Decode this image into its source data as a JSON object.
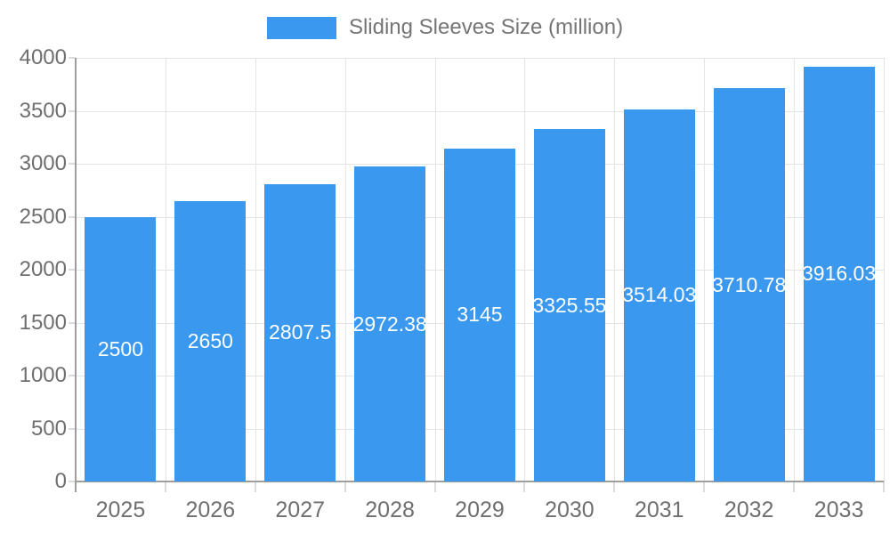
{
  "legend": {
    "label": "Sliding Sleeves Size (million)"
  },
  "chart_data": {
    "type": "bar",
    "title": "Sliding Sleeves Size (million)",
    "categories": [
      "2025",
      "2026",
      "2027",
      "2028",
      "2029",
      "2030",
      "2031",
      "2032",
      "2033"
    ],
    "series": [
      {
        "name": "Sliding Sleeves Size (million)",
        "values": [
          2500,
          2650,
          2807.5,
          2972.38,
          3145,
          3325.55,
          3514.03,
          3710.78,
          3916.03
        ]
      }
    ],
    "bar_labels": [
      "2500",
      "2650",
      "2807.5",
      "2972.38",
      "3145",
      "3325.55",
      "3514.03",
      "3710.78",
      "3916.03"
    ],
    "xlabel": "",
    "ylabel": "",
    "ylim": [
      0,
      4000
    ],
    "yticks": [
      0,
      500,
      1000,
      1500,
      2000,
      2500,
      3000,
      3500,
      4000
    ],
    "grid": true,
    "legend_position": "top"
  },
  "colors": {
    "bar": "#3A99EF",
    "grid": "#E4E4E4",
    "axis_line": "#9E9E9E",
    "tick": "#DBDBDB",
    "axis_text": "#6F6F6F",
    "legend_text": "#757575",
    "bar_label_text": "#FFFFFF",
    "background": "#FFFFFF"
  }
}
